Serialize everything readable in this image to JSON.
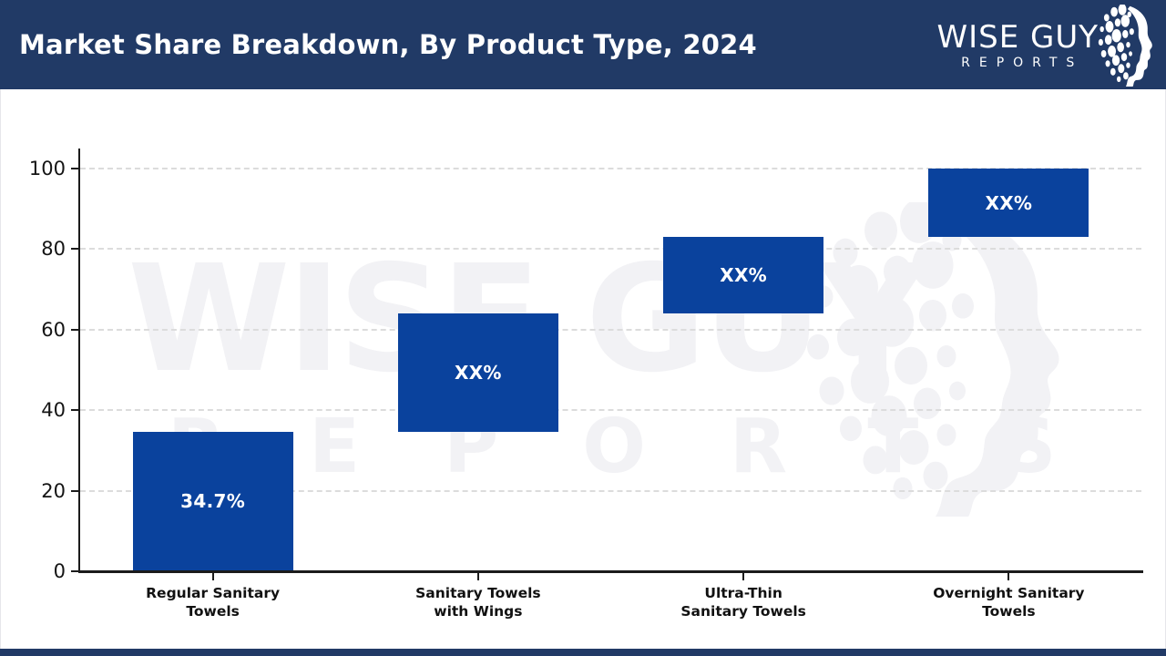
{
  "header": {
    "title": "Market Share Breakdown, By Product Type, 2024",
    "logo": {
      "name_line": "WISE GUY",
      "sub_line": "REPORTS"
    }
  },
  "watermark": {
    "name_line": "WISE GUY",
    "sub_line": "REPORTS"
  },
  "colors": {
    "header_bg": "#213a66",
    "footer_bg": "#213a66",
    "bar_fill": "#0a429d",
    "bar_label": "#ffffff",
    "grid_line": "#dcdcdc",
    "axis_line": "#1b1b1b",
    "tick_label": "#141414",
    "watermark": "#f2f2f5",
    "title_text": "#ffffff",
    "canvas_bg": "#ffffff"
  },
  "chart_data": {
    "type": "bar",
    "subtype": "floating-waterfall",
    "title": "Market Share Breakdown, By Product Type, 2024",
    "categories": [
      "Regular Sanitary\nTowels",
      "Sanitary Towels\nwith Wings",
      "Ultra-Thin\nSanitary Towels",
      "Overnight Sanitary\nTowels"
    ],
    "series": [
      {
        "name": "Market share (%)",
        "segments": [
          {
            "category": "Regular Sanitary Towels",
            "start": 0,
            "end": 34.7,
            "label": "34.7%"
          },
          {
            "category": "Sanitary Towels with Wings",
            "start": 34.7,
            "end": 64,
            "label": "XX%"
          },
          {
            "category": "Ultra-Thin Sanitary Towels",
            "start": 64,
            "end": 83,
            "label": "XX%"
          },
          {
            "category": "Overnight Sanitary Towels",
            "start": 83,
            "end": 100,
            "label": "XX%"
          }
        ]
      }
    ],
    "xlabel": "",
    "ylabel": "",
    "ylim": [
      0,
      100
    ],
    "yticks": [
      0,
      20,
      40,
      60,
      80,
      100
    ],
    "grid": "horizontal-dashed",
    "legend": "none"
  }
}
